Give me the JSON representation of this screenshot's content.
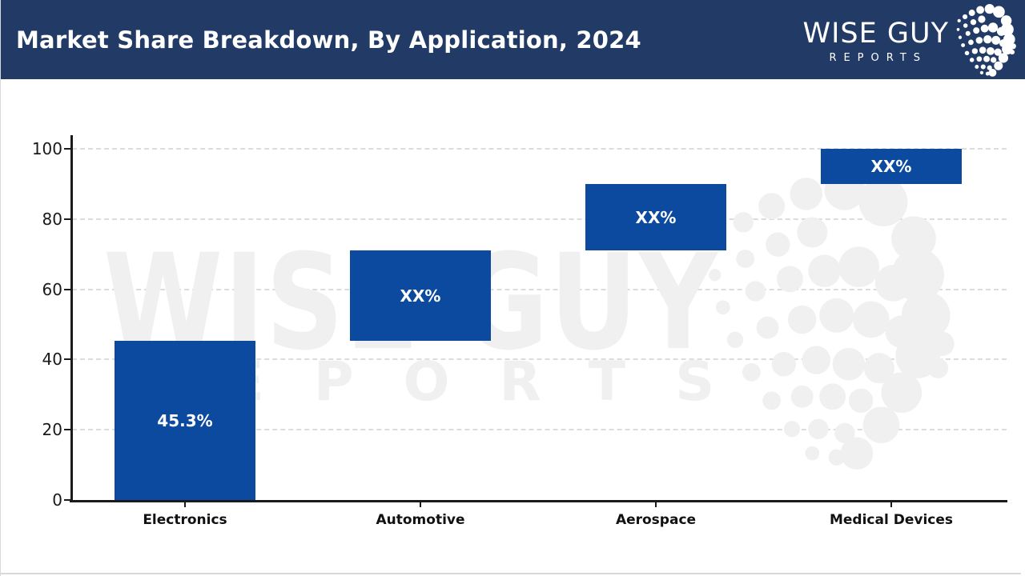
{
  "header": {
    "title": "Market Share Breakdown, By Application, 2024",
    "brand": {
      "name": "WISE GUY",
      "sub": "REPORTS"
    }
  },
  "watermark": {
    "name": "WISE GUY",
    "sub": "REPORTS"
  },
  "chart_data": {
    "type": "bar",
    "variant": "waterfall-floating-bars",
    "title": "Market Share Breakdown, By Application, 2024",
    "categories": [
      "Electronics",
      "Automotive",
      "Aerospace",
      "Medical Devices"
    ],
    "segments": [
      {
        "category": "Electronics",
        "start": 0,
        "end": 45.3,
        "label": "45.3%"
      },
      {
        "category": "Automotive",
        "start": 45.3,
        "end": 71,
        "label": "XX%"
      },
      {
        "category": "Aerospace",
        "start": 71,
        "end": 90,
        "label": "XX%"
      },
      {
        "category": "Medical Devices",
        "start": 90,
        "end": 100,
        "label": "XX%"
      }
    ],
    "ylim": [
      0,
      100
    ],
    "yticks": [
      0,
      20,
      40,
      60,
      80,
      100
    ],
    "xlabel": "",
    "ylabel": "",
    "grid": "horizontal-dashed",
    "legend": "none",
    "bar_color": "#0b4a9f",
    "bar_label_color": "#ffffff"
  },
  "colors": {
    "header_bg": "#213a66",
    "bar": "#0b4a9f",
    "axis": "#1a1a1a",
    "grid": "#dcdcdc",
    "watermark": "#f0f0f0"
  }
}
